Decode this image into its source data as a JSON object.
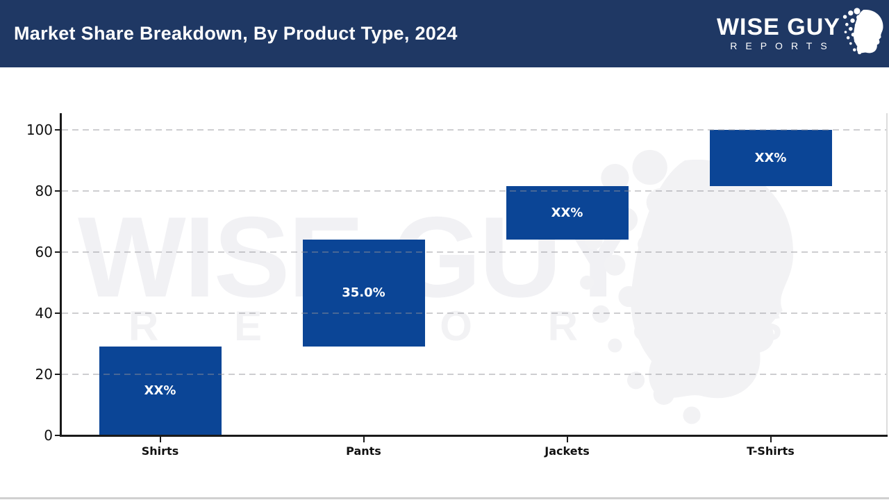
{
  "header": {
    "title": "Market Share Breakdown, By Product Type, 2024",
    "logo": {
      "line1": "WISE GUY",
      "line2": "REPORTS"
    }
  },
  "watermark": {
    "line1": "WISE GUY",
    "line2": "R E P O R T S"
  },
  "chart_data": {
    "type": "bar",
    "variant": "waterfall",
    "title": "Market Share Breakdown, By Product Type, 2024",
    "categories": [
      "Shirts",
      "Pants",
      "Jackets",
      "T-Shirts"
    ],
    "segments": [
      {
        "category": "Shirts",
        "start": 0,
        "end": 29,
        "value_shown": "XX%"
      },
      {
        "category": "Pants",
        "start": 29,
        "end": 64,
        "value_shown": "35.0%"
      },
      {
        "category": "Jackets",
        "start": 64,
        "end": 81.5,
        "value_shown": "XX%"
      },
      {
        "category": "T-Shirts",
        "start": 81.5,
        "end": 100,
        "value_shown": "XX%"
      }
    ],
    "y_ticks": [
      0,
      20,
      40,
      60,
      80,
      100
    ],
    "ylim": [
      0,
      105.5
    ],
    "xlabel": "",
    "ylabel": "",
    "grid": true,
    "grid_style": "dashed-horizontal",
    "legend": false,
    "bar_color": "#0b4596",
    "bar_label_color": "#ffffff"
  },
  "colors": {
    "header_bg": "#1f3864",
    "bar_blue": "#0b4596",
    "axis": "#1a1a1a",
    "grid": "#d9d9d9",
    "watermark": "#f2f2f4",
    "footer_line": "#d0d0d0"
  }
}
